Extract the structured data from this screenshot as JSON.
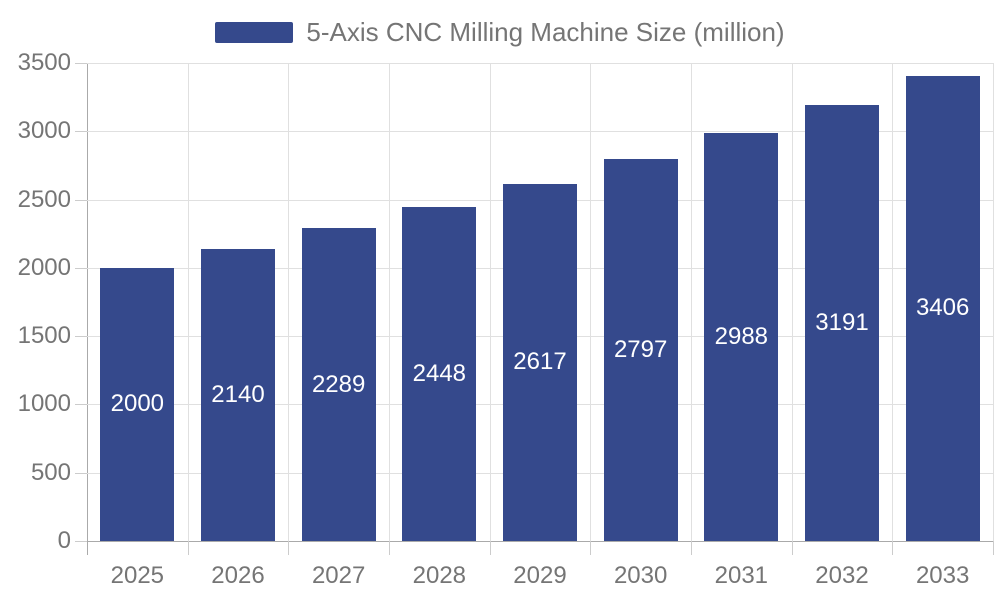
{
  "chart_data": {
    "type": "bar",
    "title": "5-Axis CNC Milling Machine Size (million)",
    "categories": [
      "2025",
      "2026",
      "2027",
      "2028",
      "2029",
      "2030",
      "2031",
      "2032",
      "2033"
    ],
    "series": [
      {
        "name": "5-Axis CNC Milling Machine Size (million)",
        "values": [
          2000,
          2140,
          2289,
          2448,
          2617,
          2797,
          2988,
          3191,
          3406
        ]
      }
    ],
    "xlabel": "",
    "ylabel": "",
    "ylim": [
      0,
      3500
    ],
    "y_ticks": [
      0,
      500,
      1000,
      1500,
      2000,
      2500,
      3000,
      3500
    ],
    "grid": "both",
    "legend_position": "top-center",
    "bar_labels_visible": true,
    "colors": {
      "bar": "#35498C",
      "bar_label": "#ffffff",
      "legend_text": "#757575",
      "axis_label": "#757575",
      "gridline": "#e0e0e0",
      "axis_line": "#aaaaaa",
      "tick": "#cccccc",
      "background": "#ffffff"
    }
  }
}
